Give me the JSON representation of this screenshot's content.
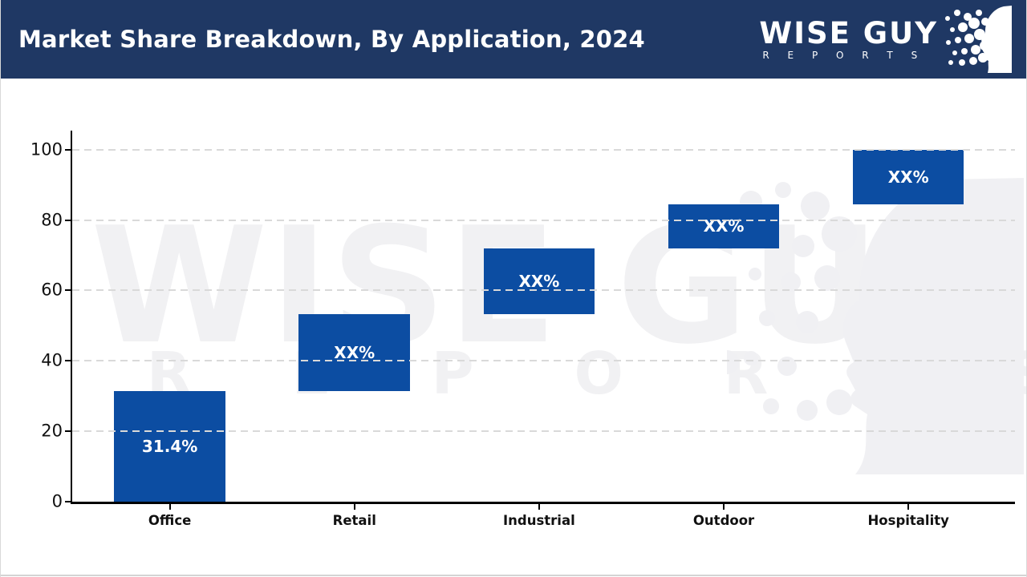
{
  "header": {
    "title": "Market Share Breakdown, By Application, 2024",
    "bg_color": "#1F3864",
    "logo": {
      "line1": "WISE GUY",
      "line2": "R E P O R T S"
    }
  },
  "watermark": {
    "line1": "WISE GUY",
    "line2": "R E P O R T S"
  },
  "chart_data": {
    "type": "bar",
    "subtype": "waterfall",
    "title": "Market Share Breakdown, By Application, 2024",
    "categories": [
      "Office",
      "Retail",
      "Industrial",
      "Outdoor",
      "Hospitality"
    ],
    "segments": [
      {
        "category": "Office",
        "start": 0,
        "end": 31.4,
        "value": 31.4,
        "label": "31.4%"
      },
      {
        "category": "Retail",
        "start": 31.4,
        "end": 53.2,
        "value": 21.8,
        "label": "XX%"
      },
      {
        "category": "Industrial",
        "start": 53.2,
        "end": 72.0,
        "value": 18.8,
        "label": "XX%"
      },
      {
        "category": "Outdoor",
        "start": 72.0,
        "end": 84.5,
        "value": 12.5,
        "label": "XX%"
      },
      {
        "category": "Hospitality",
        "start": 84.5,
        "end": 100.0,
        "value": 15.5,
        "label": "XX%"
      }
    ],
    "xlabel": "",
    "ylabel": "",
    "ylim": [
      0,
      100
    ],
    "yticks": [
      0,
      20,
      40,
      60,
      80,
      100
    ],
    "grid": "horizontal-dashed-over-bars",
    "legend": "none",
    "bar_color": "#0C4DA2",
    "bar_label_color": "#FFFFFF",
    "grid_color": "#D9D9D9",
    "axis_color": "#000000"
  }
}
